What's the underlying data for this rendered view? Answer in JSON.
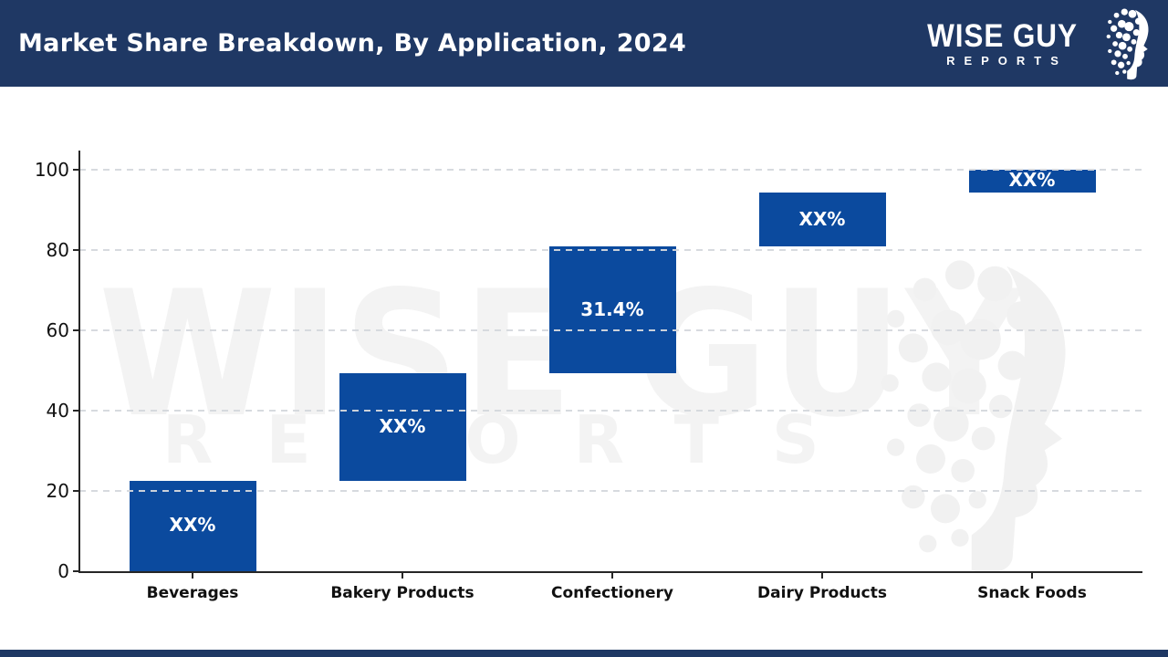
{
  "header": {
    "title": "Market Share Breakdown, By Application, 2024",
    "logo": {
      "line1": "WISE GUY",
      "line2": "REPORTS"
    }
  },
  "watermark": {
    "line1": "WISE GUY",
    "line2": "REPORTS"
  },
  "colors": {
    "header_bg": "#1f3864",
    "footer_bg": "#1f3864",
    "bar": "#0b4a9e",
    "axis": "#262626",
    "grid": "#d9d9d9",
    "bar_label": "#ffffff",
    "tick_label": "#111111",
    "watermark": "#f3f3f3"
  },
  "chart_data": {
    "type": "bar",
    "subtype": "waterfall",
    "title": "Market Share Breakdown, By Application, 2024",
    "categories": [
      "Beverages",
      "Bakery Products",
      "Confectionery",
      "Dairy Products",
      "Snack Foods"
    ],
    "values": [
      22.6,
      26.8,
      31.4,
      13.6,
      5.6
    ],
    "starts": [
      0,
      22.6,
      49.4,
      80.8,
      94.4
    ],
    "bar_labels": [
      "XX%",
      "XX%",
      "31.4%",
      "XX%",
      "XX%"
    ],
    "yticks": [
      0,
      20,
      40,
      60,
      80,
      100
    ],
    "ylim": [
      0,
      104
    ],
    "xlabel": "",
    "ylabel": "",
    "grid": "dashed-horizontal",
    "legend": "none"
  }
}
